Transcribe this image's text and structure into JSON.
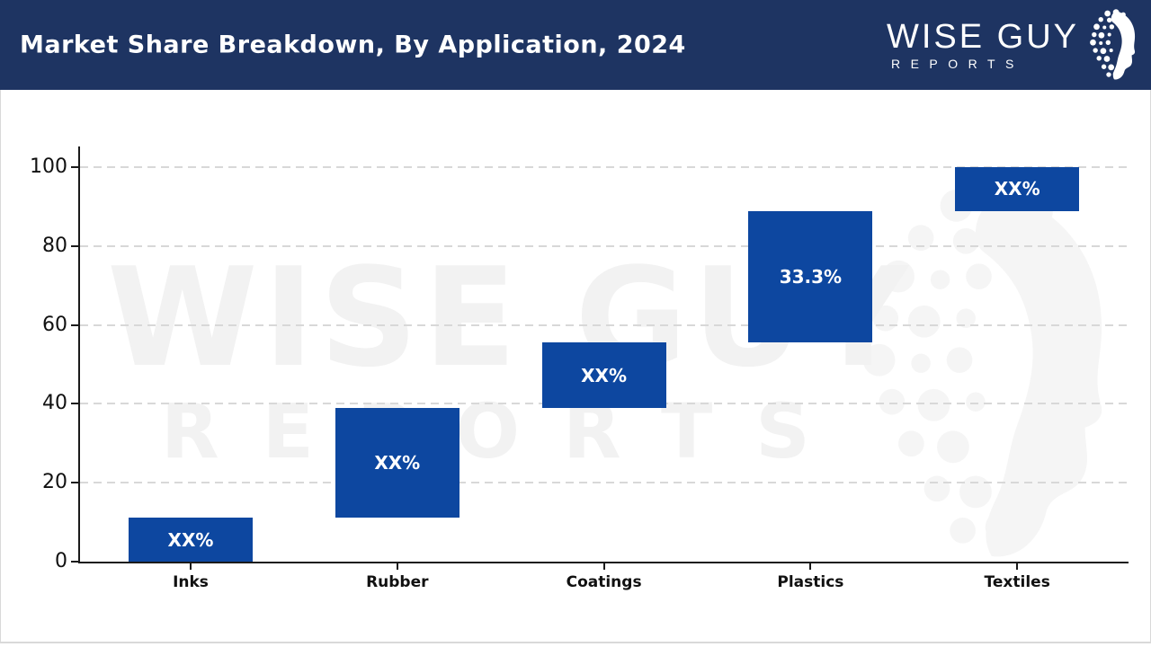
{
  "header": {
    "title": "Market Share Breakdown, By Application, 2024",
    "logo_line1": "WISE GUY",
    "logo_line2": "REPORTS"
  },
  "watermark": {
    "line1": "WISE GUY",
    "line2": "REPORTS"
  },
  "chart_data": {
    "type": "bar",
    "variant": "floating-waterfall",
    "title": "Market Share Breakdown, By Application, 2024",
    "categories": [
      "Inks",
      "Rubber",
      "Coatings",
      "Plastics",
      "Textiles"
    ],
    "bars": [
      {
        "category": "Inks",
        "start": 0,
        "end": 11.1,
        "label": "XX%"
      },
      {
        "category": "Rubber",
        "start": 11.1,
        "end": 38.9,
        "label": "XX%"
      },
      {
        "category": "Coatings",
        "start": 38.9,
        "end": 55.6,
        "label": "XX%"
      },
      {
        "category": "Plastics",
        "start": 55.6,
        "end": 88.9,
        "label": "33.3%"
      },
      {
        "category": "Textiles",
        "start": 88.9,
        "end": 100,
        "label": "XX%"
      }
    ],
    "xlabel": "",
    "ylabel": "",
    "ylim": [
      0,
      105
    ],
    "yticks": [
      0,
      20,
      40,
      60,
      80,
      100
    ],
    "grid": "horizontal-dashed",
    "legend": "none"
  },
  "colors": {
    "header_bg": "#1e3462",
    "bar": "#0d47a0",
    "bar_label": "#ffffff",
    "axis": "#1a1a1a",
    "gridline": "#d8d8d8",
    "watermark": "#f2f2f2",
    "body_border": "#d9d9d9"
  }
}
